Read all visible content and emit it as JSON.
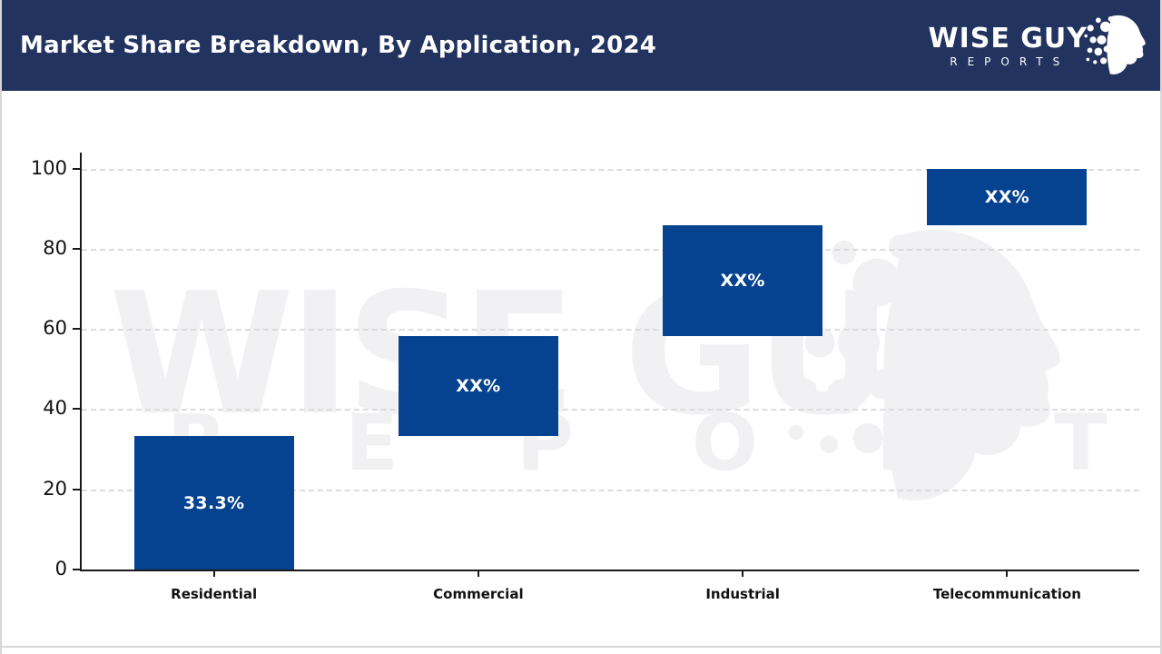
{
  "header": {
    "title": "Market Share Breakdown, By Application, 2024",
    "logo": {
      "line1": "WISE GUY",
      "line2": "REPORTS"
    }
  },
  "watermark": {
    "line1": "WISE GUY",
    "line2": "R E P O R T S"
  },
  "colors": {
    "header_bg": "#22335f",
    "bar_fill": "#05428f",
    "grid_line": "#dcdcdc",
    "watermark": "#f1f1f3",
    "bar_label": "#ffffff"
  },
  "chart_data": {
    "type": "bar",
    "subtype": "floating-waterfall",
    "title": "Market Share Breakdown, By Application, 2024",
    "categories": [
      "Residential",
      "Commercial",
      "Industrial",
      "Telecommunication"
    ],
    "segments": [
      {
        "category": "Residential",
        "start": 0,
        "end": 33.3,
        "value": 33.3,
        "label": "33.3%"
      },
      {
        "category": "Commercial",
        "start": 33.3,
        "end": 58.3,
        "value": 25.0,
        "label": "XX%"
      },
      {
        "category": "Industrial",
        "start": 58.3,
        "end": 85.8,
        "value": 27.5,
        "label": "XX%"
      },
      {
        "category": "Telecommunication",
        "start": 85.8,
        "end": 100.0,
        "value": 14.2,
        "label": "XX%"
      }
    ],
    "xlabel": "",
    "ylabel": "",
    "yticks": [
      0,
      20,
      40,
      60,
      80,
      100
    ],
    "ylim": [
      0,
      104
    ],
    "grid": "horizontal-dashed",
    "legend": "none"
  }
}
